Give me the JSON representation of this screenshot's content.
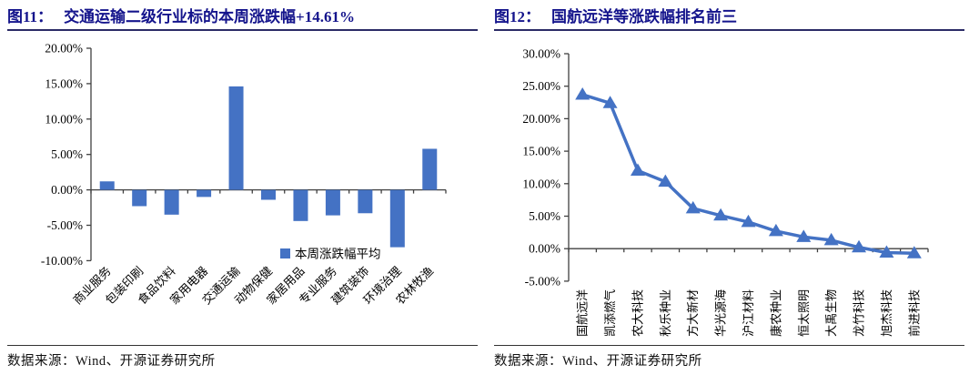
{
  "figures": [
    {
      "label": "图11：",
      "title": "交通运输二级行业标的本周涨跌幅+14.61%",
      "source": "数据来源：Wind、开源证券研究所"
    },
    {
      "label": "图12：",
      "title": "国航远洋等涨跌幅排名前三",
      "source": "数据来源：Wind、开源证券研究所"
    }
  ],
  "colors": {
    "series_blue": "#4472C4",
    "title_navy": "#14148C",
    "axis_gray": "#404040"
  },
  "chart_data": [
    {
      "type": "bar",
      "title": "交通运输二级行业标的本周涨跌幅+14.61%",
      "categories": [
        "商业服务",
        "包装印刷",
        "食品饮料",
        "家用电器",
        "交通运输",
        "动物保健",
        "家居用品",
        "专业服务",
        "建筑装饰",
        "环境治理",
        "农林牧渔"
      ],
      "values": [
        1.2,
        -2.3,
        -3.5,
        -1.0,
        14.61,
        -1.4,
        -4.4,
        -3.6,
        -3.3,
        -8.1,
        5.8
      ],
      "unit": "%",
      "ylim": [
        -10,
        20
      ],
      "ytick_step": 5,
      "ytick_format": "0.00%",
      "legend": [
        "本周涨跌幅平均"
      ],
      "legend_position": "inside-bottom-right",
      "grid": false,
      "bar_color": "#4472C4",
      "xlabel": "",
      "ylabel": ""
    },
    {
      "type": "line",
      "title": "国航远洋等涨跌幅排名前三",
      "categories": [
        "国航远洋",
        "凯添燃气",
        "农大科技",
        "秋乐种业",
        "方大新材",
        "华光源海",
        "沪江材料",
        "康农种业",
        "恒太照明",
        "大禹生物",
        "龙竹科技",
        "旭杰科技",
        "前进科技"
      ],
      "values": [
        23.7,
        22.4,
        12.0,
        10.3,
        6.2,
        5.1,
        4.1,
        2.7,
        1.8,
        1.3,
        0.2,
        -0.6,
        -0.7
      ],
      "unit": "%",
      "ylim": [
        -5,
        30
      ],
      "ytick_step": 5,
      "ytick_format": "0.00%",
      "marker": "triangle",
      "legend": [],
      "grid": false,
      "line_color": "#4472C4",
      "xlabel": "",
      "ylabel": ""
    }
  ]
}
